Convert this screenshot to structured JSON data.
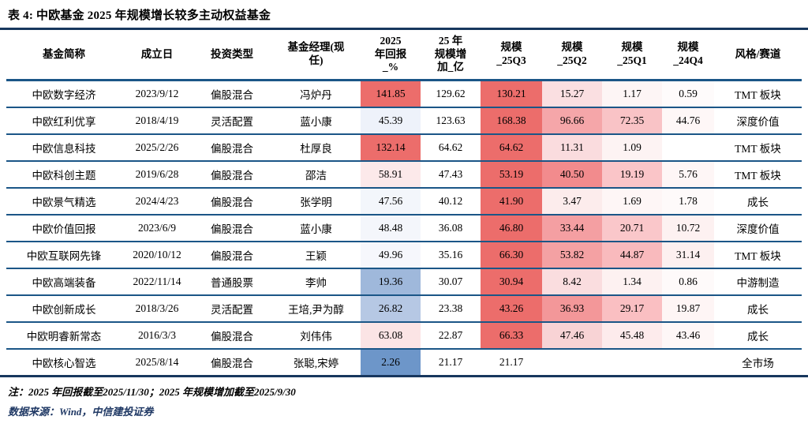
{
  "title": "表 4: 中欧基金 2025 年规模增长较多主动权益基金",
  "colors": {
    "accent_rule": "#17375E",
    "row_line": "#1B5687",
    "highlight_red": "#EC6D6B",
    "highlight_blue_strong": "#6D96C9",
    "note_source_color": "#1F3864"
  },
  "table": {
    "headers": [
      "基金简称",
      "成立日",
      "投资类型",
      "基金经理(现\n任)",
      "2025\n年回报\n_%",
      "25 年\n规模增\n加_亿",
      "规模\n_25Q3",
      "规模\n_25Q2",
      "规模\n_25Q1",
      "规模\n_24Q4",
      "风格/赛道"
    ],
    "rows": [
      {
        "cells": [
          "中欧数字经济",
          "2023/9/12",
          "偏股混合",
          "冯炉丹",
          "141.85",
          "129.62",
          "130.21",
          "15.27",
          "1.17",
          "0.59",
          "TMT 板块"
        ],
        "bg": [
          "",
          "",
          "",
          "",
          "#EC6D6B",
          "",
          "#EC6D6B",
          "#FADFE1",
          "#FDF5F5",
          "#FEFBFB",
          ""
        ]
      },
      {
        "cells": [
          "中欧红利优享",
          "2018/4/19",
          "灵活配置",
          "蓝小康",
          "45.39",
          "123.63",
          "168.38",
          "96.66",
          "72.35",
          "44.76",
          "深度价值"
        ],
        "bg": [
          "",
          "",
          "",
          "",
          "#EEF2FA",
          "",
          "#EC6D6B",
          "#F5A6A9",
          "#F9C3C6",
          "#FEF7F7",
          ""
        ]
      },
      {
        "cells": [
          "中欧信息科技",
          "2025/2/26",
          "偏股混合",
          "杜厚良",
          "132.14",
          "64.62",
          "64.62",
          "11.31",
          "1.09",
          "",
          "TMT 板块"
        ],
        "bg": [
          "",
          "",
          "",
          "",
          "#EC6D6B",
          "",
          "#EC6D6B",
          "#FADCDE",
          "#FDF3F3",
          "",
          ""
        ]
      },
      {
        "cells": [
          "中欧科创主题",
          "2019/6/28",
          "偏股混合",
          "邵洁",
          "58.91",
          "47.43",
          "53.19",
          "40.50",
          "19.19",
          "5.76",
          "TMT 板块"
        ],
        "bg": [
          "",
          "",
          "",
          "",
          "#FCE9EA",
          "",
          "#EC6D6B",
          "#F28B8D",
          "#FAC5C8",
          "#FEF6F6",
          ""
        ]
      },
      {
        "cells": [
          "中欧景气精选",
          "2024/4/23",
          "偏股混合",
          "张学明",
          "47.56",
          "40.12",
          "41.90",
          "3.47",
          "1.69",
          "1.78",
          "成长"
        ],
        "bg": [
          "",
          "",
          "",
          "",
          "#F3F6FB",
          "",
          "#EC6D6B",
          "#FCECEC",
          "#FEF6F6",
          "#FEFAFA",
          ""
        ]
      },
      {
        "cells": [
          "中欧价值回报",
          "2023/6/9",
          "偏股混合",
          "蓝小康",
          "48.48",
          "36.08",
          "46.80",
          "33.44",
          "20.71",
          "10.72",
          "深度价值"
        ],
        "bg": [
          "",
          "",
          "",
          "",
          "#F4F6FB",
          "",
          "#EC6D6B",
          "#F49FA2",
          "#FAC7CA",
          "#FDF1F1",
          ""
        ]
      },
      {
        "cells": [
          "中欧互联网先锋",
          "2020/10/12",
          "偏股混合",
          "王颖",
          "49.96",
          "35.16",
          "66.30",
          "53.82",
          "44.87",
          "31.14",
          "TMT 板块"
        ],
        "bg": [
          "",
          "",
          "",
          "",
          "#F6F7FC",
          "",
          "#EC6D6B",
          "#F4A1A3",
          "#F9BABD",
          "#FDF0F0",
          ""
        ]
      },
      {
        "cells": [
          "中欧高端装备",
          "2022/11/14",
          "普通股票",
          "李帅",
          "19.36",
          "30.07",
          "30.94",
          "8.42",
          "1.34",
          "0.86",
          "中游制造"
        ],
        "bg": [
          "",
          "",
          "",
          "",
          "#9FB8DB",
          "",
          "#EC6D6B",
          "#FADDDF",
          "#FDF1F1",
          "#FEFAFA",
          ""
        ]
      },
      {
        "cells": [
          "中欧创新成长",
          "2018/3/26",
          "灵活配置",
          "王培,尹为醇",
          "26.82",
          "23.38",
          "43.26",
          "36.93",
          "29.17",
          "19.87",
          "成长"
        ],
        "bg": [
          "",
          "",
          "",
          "",
          "#B6C8E4",
          "",
          "#EC6D6B",
          "#F39799",
          "#FABFC2",
          "#FEF5F5",
          ""
        ]
      },
      {
        "cells": [
          "中欧明睿新常态",
          "2016/3/3",
          "偏股混合",
          "刘伟伟",
          "63.08",
          "22.87",
          "66.33",
          "47.46",
          "45.48",
          "43.46",
          "成长"
        ],
        "bg": [
          "",
          "",
          "",
          "",
          "#FBE4E5",
          "",
          "#EC6D6B",
          "#F8D3D5",
          "#FDEBEC",
          "#FEF7F7",
          ""
        ]
      },
      {
        "cells": [
          "中欧核心智选",
          "2025/8/14",
          "偏股混合",
          "张聪,宋婷",
          "2.26",
          "21.17",
          "21.17",
          "",
          "",
          "",
          "全市场"
        ],
        "bg": [
          "",
          "",
          "",
          "",
          "#6D96C9",
          "",
          "",
          "",
          "",
          "",
          ""
        ]
      }
    ]
  },
  "footnotes": {
    "note": "注：2025 年回报截至2025/11/30；2025 年规模增加截至2025/9/30",
    "source": "数据来源：Wind，中信建投证券"
  }
}
